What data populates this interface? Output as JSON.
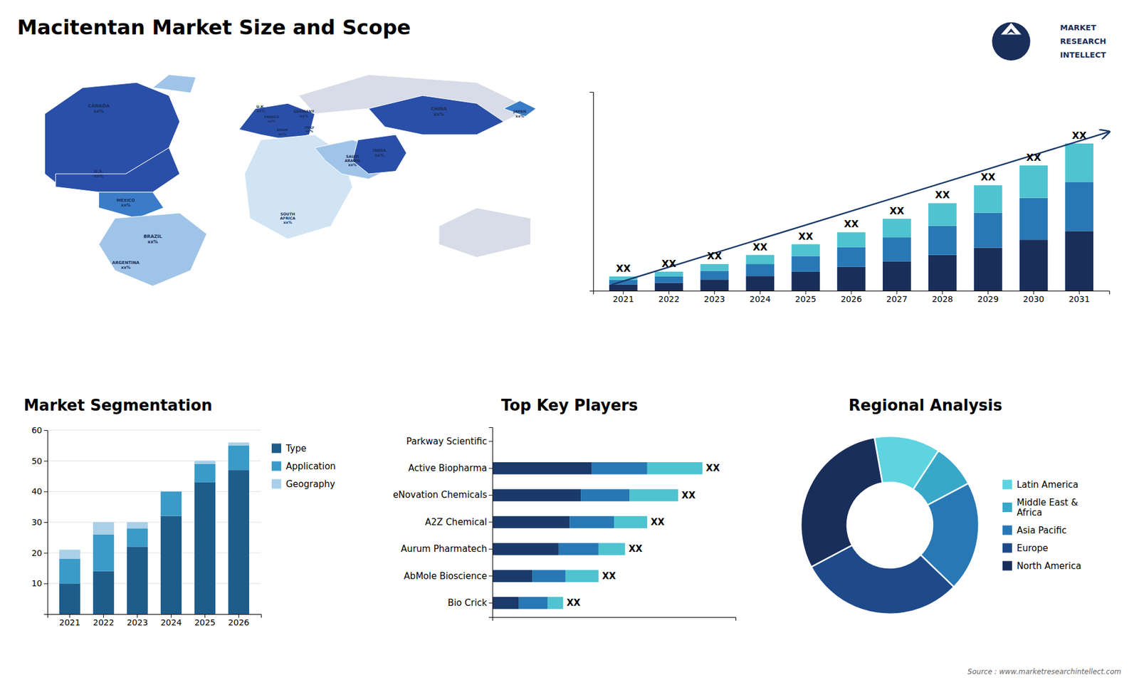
{
  "title": "Macitentan Market Size and Scope",
  "annotations": [
    "Source : www.marketresearchintellect.com"
  ],
  "chart_data": [
    {
      "type": "map",
      "annotations": [
        "CANADA\nxx%",
        "U.S.\nxx%",
        "MEXICO\nxx%",
        "BRAZIL\nxx%",
        "ARGENTINA\nxx%",
        "U.K.\nxx%",
        "FRANCE\nxx%",
        "SPAIN\nxx%",
        "GERMANY\nxx%",
        "ITALY\nxx%",
        "SOUTH\nAFRICA\nxx%",
        "SAUDI\nARABIA\nxx%",
        "CHINA\nxx%",
        "JAPAN\nxx%",
        "INDIA\nxx%"
      ]
    },
    {
      "type": "bar",
      "stacked": true,
      "categories": [
        "2021",
        "2022",
        "2023",
        "2024",
        "2025",
        "2026",
        "2027",
        "2028",
        "2029",
        "2030",
        "2031"
      ],
      "series": [
        {
          "color": "#1a2e5a",
          "values": [
            1.5,
            2.0,
            2.8,
            3.7,
            4.8,
            6.0,
            7.4,
            9.0,
            10.8,
            12.8,
            15.0
          ]
        },
        {
          "color": "#2878b5",
          "values": [
            1.2,
            1.6,
            2.2,
            3.0,
            3.9,
            4.9,
            6.0,
            7.3,
            8.8,
            10.5,
            12.3
          ]
        },
        {
          "color": "#4fc3d0",
          "values": [
            0.9,
            1.2,
            1.7,
            2.3,
            3.0,
            3.8,
            4.7,
            5.7,
            6.9,
            8.2,
            9.7
          ],
          "value_labels": [
            "XX",
            "XX",
            "XX",
            "XX",
            "XX",
            "XX",
            "XX",
            "XX",
            "XX",
            "XX",
            "XX"
          ]
        }
      ],
      "ylim": [
        0,
        49.95
      ],
      "tick_labels": "x",
      "data_labels": true
    },
    {
      "type": "bar",
      "stacked": true,
      "title": "Market Segmentation",
      "categories": [
        "2021",
        "2022",
        "2023",
        "2024",
        "2025",
        "2026"
      ],
      "series": [
        {
          "name": "Type",
          "color": "#1e5c8a",
          "values": [
            10,
            14,
            22,
            32,
            43,
            47
          ]
        },
        {
          "name": "Application",
          "color": "#3a9bc8",
          "values": [
            8,
            12,
            6,
            8,
            6,
            8
          ]
        },
        {
          "name": "Geography",
          "color": "#aacfe8",
          "values": [
            3,
            4,
            2,
            0,
            1,
            1
          ]
        }
      ],
      "ylim": [
        0,
        60
      ],
      "yticks": [
        10,
        20,
        30,
        40,
        50,
        60
      ],
      "grid": true,
      "legend": "right"
    },
    {
      "type": "bar",
      "orientation": "horizontal",
      "stacked": true,
      "title": "Top Key Players",
      "categories": [
        "Parkway Scientific",
        "Active Biopharma",
        "eNovation Chemicals",
        "A2Z Chemical",
        "Aurum Pharmatech",
        "AbMole Bioscience",
        "Bio Crick"
      ],
      "series": [
        {
          "color": "#1a3a6a",
          "values": [
            0,
            4.5,
            4.0,
            3.5,
            3.0,
            1.8,
            1.2
          ]
        },
        {
          "color": "#2878b5",
          "values": [
            0,
            2.5,
            2.2,
            2.0,
            1.8,
            1.5,
            1.3
          ]
        },
        {
          "color": "#4fc3d0",
          "values": [
            0,
            2.5,
            2.2,
            1.5,
            1.2,
            1.5,
            0.7
          ],
          "value_labels": [
            null,
            "XX",
            "XX",
            "XX",
            "XX",
            "XX",
            "XX"
          ]
        }
      ],
      "xlim": [
        0,
        11.0
      ],
      "tick_labels": "y",
      "data_labels": true
    },
    {
      "type": "pie",
      "title": "Regional Analysis",
      "categories": [
        "Latin America",
        "Middle East &\nAfrica",
        "Asia Pacific",
        "Europe",
        "North America"
      ],
      "values": [
        12,
        8,
        20,
        30,
        30
      ],
      "colors": [
        "#5dd4e0",
        "#38a8c8",
        "#2878b5",
        "#1e4a8a",
        "#1a2e5a"
      ],
      "legend": "right"
    },
    {
      "type": "logo",
      "annotations": [
        "MARKET",
        "RESEARCH",
        "INTELLECT"
      ]
    }
  ]
}
